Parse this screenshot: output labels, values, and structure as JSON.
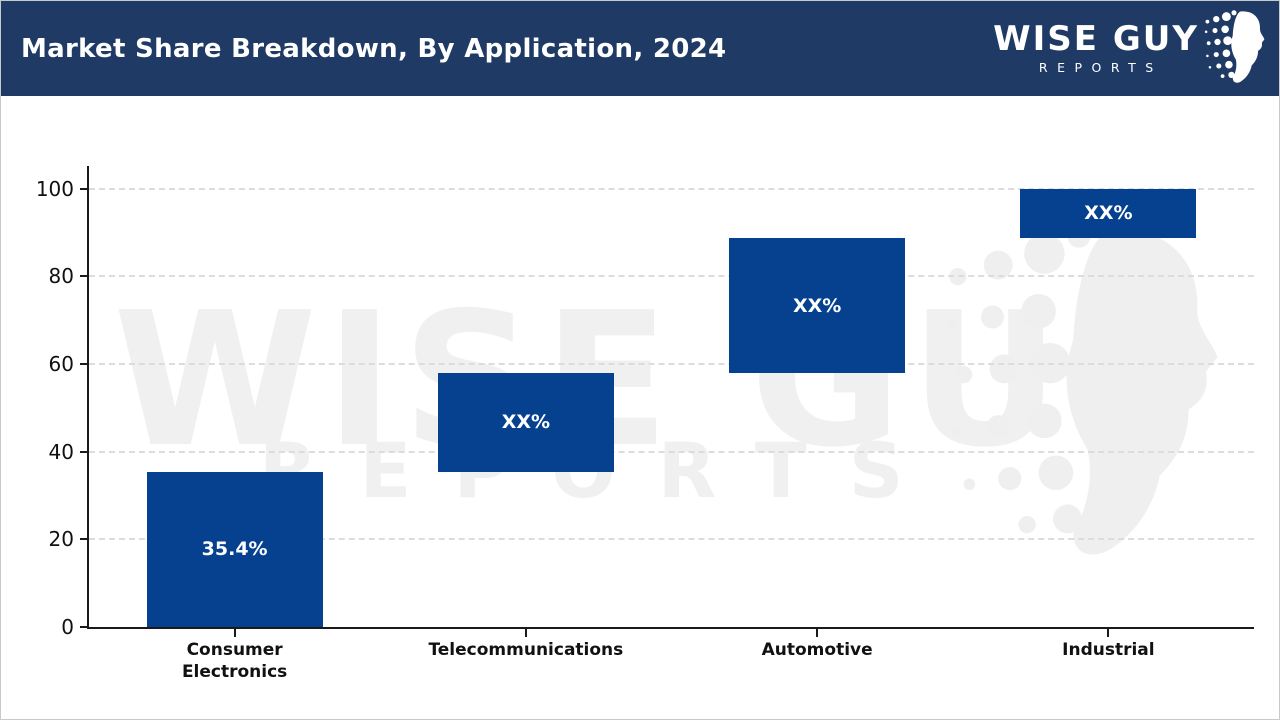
{
  "header": {
    "title": "Market Share Breakdown, By Application, 2024",
    "bg_color": "#1f3a64",
    "logo": {
      "wordmark": "WISE GUY",
      "subtext": "REPORTS"
    }
  },
  "watermark": {
    "line1": "WISE GU",
    "line2": "REPORTS"
  },
  "chart_data": {
    "type": "bar",
    "subtype": "floating-waterfall",
    "title": "Market Share Breakdown, By Application, 2024",
    "categories": [
      "Consumer Electronics",
      "Telecommunications",
      "Automotive",
      "Industrial"
    ],
    "category_lines": [
      [
        "Consumer",
        "Electronics"
      ],
      [
        "Telecommunications"
      ],
      [
        "Automotive"
      ],
      [
        "Industrial"
      ]
    ],
    "segments": [
      {
        "category": "Consumer Electronics",
        "start": 0,
        "end": 35.4,
        "label": "35.4%"
      },
      {
        "category": "Telecommunications",
        "start": 35.4,
        "end": 58.0,
        "label": "XX%"
      },
      {
        "category": "Automotive",
        "start": 58.0,
        "end": 88.6,
        "label": "XX%"
      },
      {
        "category": "Industrial",
        "start": 88.6,
        "end": 100,
        "label": "XX%"
      }
    ],
    "ylim": [
      0,
      100
    ],
    "yticks": [
      0,
      20,
      40,
      60,
      80,
      100
    ],
    "xlabel": "",
    "ylabel": "",
    "grid": "horizontal-dashed",
    "legend": "none",
    "bar_color": "#05418f",
    "value_label_color": "#ffffff",
    "axis_color": "#1a1a1a",
    "gridline_color": "#dcdcdc"
  }
}
